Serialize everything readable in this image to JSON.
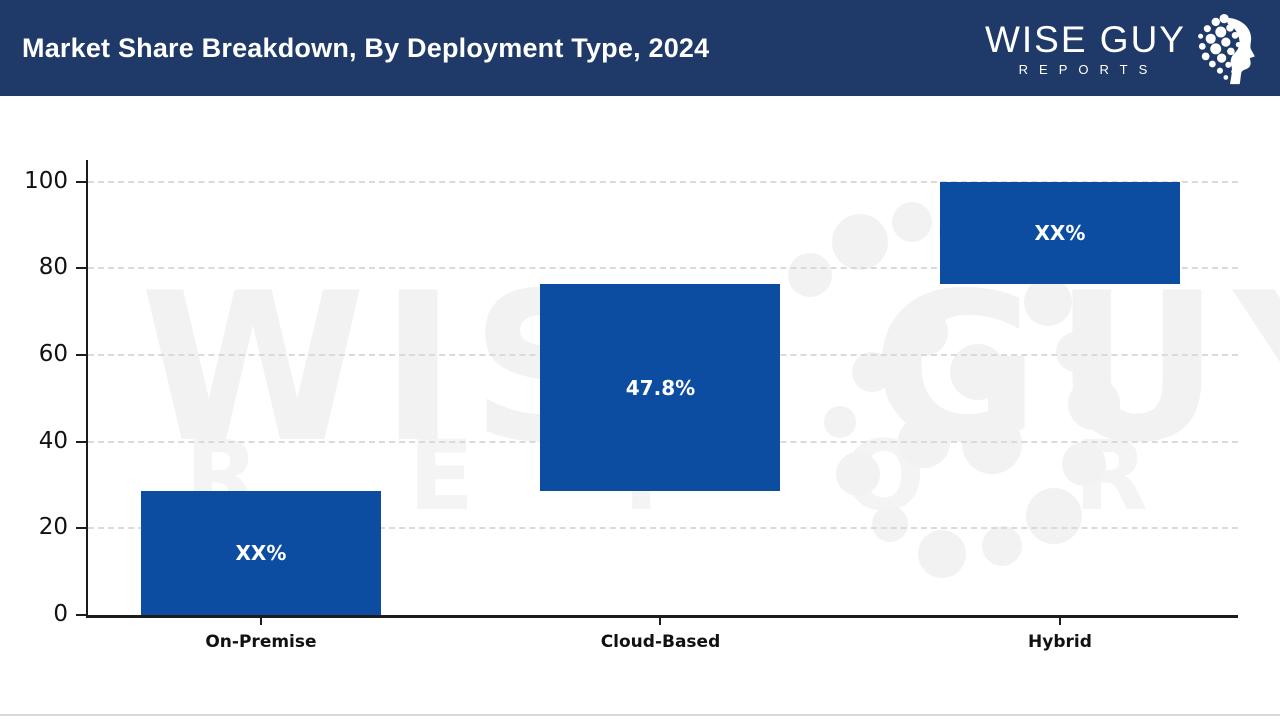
{
  "header": {
    "title": "Market Share Breakdown, By Deployment Type, 2024",
    "logo": {
      "line1": "WISE GUY",
      "line2": "REPORTS",
      "head_icon": "dotted-head-profile"
    }
  },
  "watermark": {
    "line1": "WISE GUY",
    "line2": "R E P O R T S"
  },
  "colors": {
    "header_background": "#1f3a68",
    "bar_fill": "#0d4da1",
    "gridline": "#dadada",
    "axis": "#1c1c1c",
    "bar_label_text": "#ffffff",
    "watermark": "#f2f2f2"
  },
  "chart_data": {
    "type": "bar",
    "subtype": "waterfall",
    "title": "Market Share Breakdown, By Deployment Type, 2024",
    "categories": [
      "On-Premise",
      "Cloud-Based",
      "Hybrid"
    ],
    "segments": [
      {
        "category": "On-Premise",
        "label": "XX%",
        "start": 0,
        "end": 28.6
      },
      {
        "category": "Cloud-Based",
        "label": "47.8%",
        "start": 28.6,
        "end": 76.4
      },
      {
        "category": "Hybrid",
        "label": "XX%",
        "start": 76.4,
        "end": 100
      }
    ],
    "xlabel": "",
    "ylabel": "",
    "yticks": [
      0,
      20,
      40,
      60,
      80,
      100
    ],
    "ylim": [
      0,
      105
    ],
    "grid": "horizontal-dashed",
    "legend": "none",
    "bar_color": "#0d4da1"
  }
}
